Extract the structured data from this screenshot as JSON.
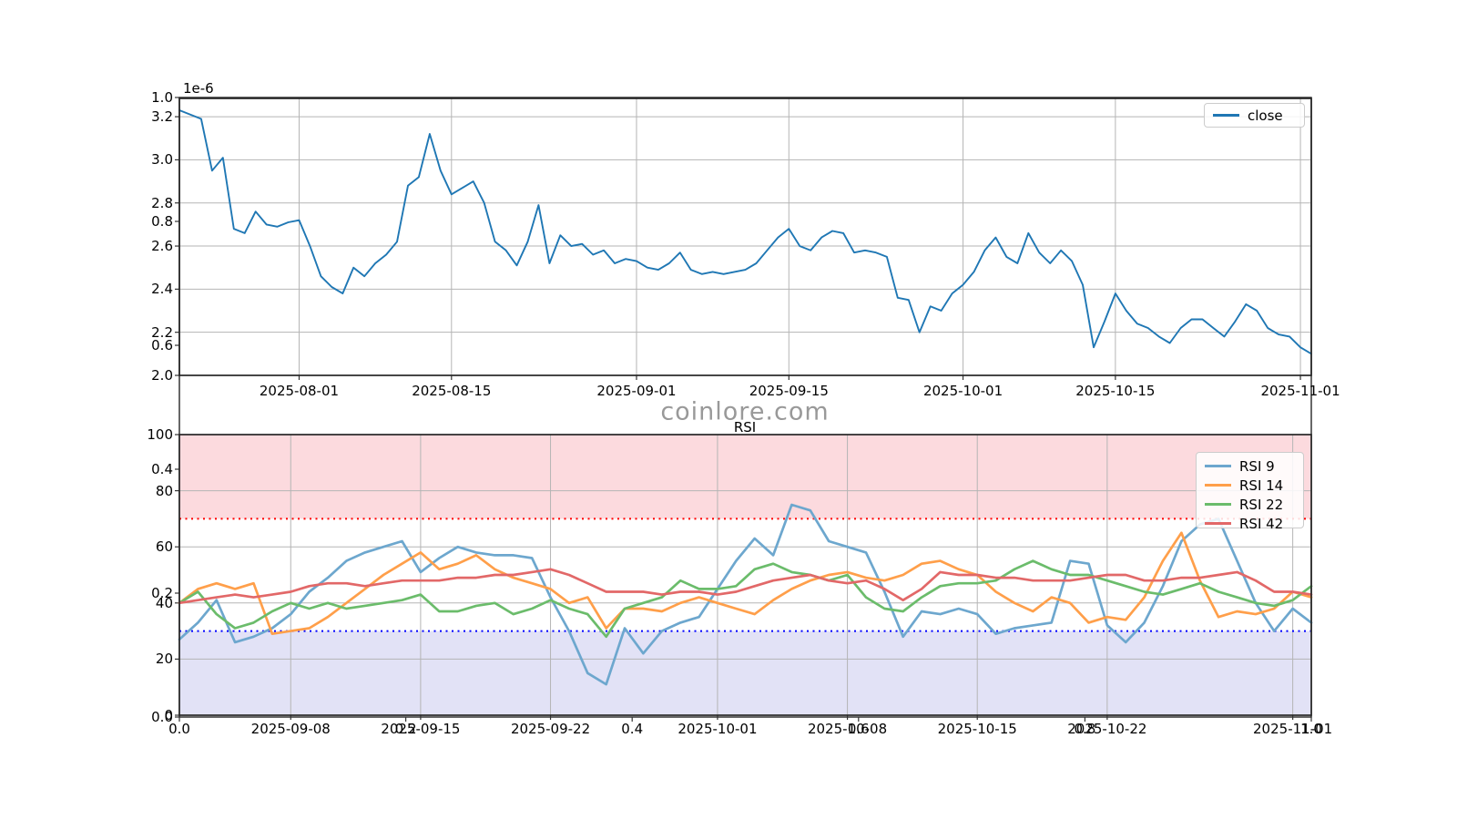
{
  "watermark": {
    "text": "coinlore.com",
    "color": "#999999"
  },
  "hidden_axis": {
    "y_tick_labels": [
      "1.0",
      "0.8",
      "0.6",
      "0.4",
      "0.2",
      "0.0"
    ],
    "x_tick_labels": [
      "0.0",
      "0.2",
      "0.4",
      "0.6",
      "0.8",
      "1.0"
    ]
  },
  "top_chart": {
    "offset_label": "1e-6",
    "y_tick_labels": [
      "3.2",
      "3.0",
      "2.8",
      "2.6",
      "2.4",
      "2.2",
      "2.0"
    ],
    "x_tick_labels": [
      "2025-08-01",
      "2025-08-15",
      "2025-09-01",
      "2025-09-15",
      "2025-10-01",
      "2025-10-15",
      "2025-11-01"
    ]
  },
  "rsi_chart": {
    "y_tick_labels": [
      "100",
      "80",
      "60",
      "40",
      "20",
      "0"
    ],
    "x_tick_labels": [
      "2025-09-08",
      "2025-09-15",
      "2025-09-22",
      "2025-10-01",
      "2025-10-08",
      "2025-10-15",
      "2025-10-22",
      "2025-11-01"
    ],
    "overbought_level": 70,
    "oversold_level": 30,
    "overbought_band_color": "#fcdade",
    "oversold_band_color": "#e2e2f6",
    "overbought_line_color": "#ff0000",
    "oversold_line_color": "#0000ff"
  },
  "chart_data": [
    {
      "type": "line",
      "title": "",
      "unit_multiplier": "1e-6",
      "ylim": [
        2.0,
        3.285
      ],
      "grid": true,
      "legend_position": "upper right",
      "x_tick_labels": [
        "2025-08-01",
        "2025-08-15",
        "2025-09-01",
        "2025-09-15",
        "2025-10-01",
        "2025-10-15",
        "2025-11-01"
      ],
      "y_tick_labels": [
        "3.2",
        "3.0",
        "2.8",
        "2.6",
        "2.4",
        "2.2",
        "2.0"
      ],
      "series": [
        {
          "name": "close",
          "color": "#1f77b4",
          "values": [
            3.23,
            3.21,
            3.19,
            2.95,
            3.01,
            2.68,
            2.66,
            2.76,
            2.7,
            2.69,
            2.71,
            2.72,
            2.6,
            2.46,
            2.41,
            2.38,
            2.5,
            2.46,
            2.52,
            2.56,
            2.62,
            2.88,
            2.92,
            3.12,
            2.95,
            2.84,
            2.87,
            2.9,
            2.8,
            2.62,
            2.58,
            2.51,
            2.62,
            2.79,
            2.52,
            2.65,
            2.6,
            2.61,
            2.56,
            2.58,
            2.52,
            2.54,
            2.53,
            2.5,
            2.49,
            2.52,
            2.57,
            2.49,
            2.47,
            2.48,
            2.47,
            2.48,
            2.49,
            2.52,
            2.58,
            2.64,
            2.68,
            2.6,
            2.58,
            2.64,
            2.67,
            2.66,
            2.57,
            2.58,
            2.57,
            2.55,
            2.36,
            2.35,
            2.2,
            2.32,
            2.3,
            2.38,
            2.42,
            2.48,
            2.58,
            2.64,
            2.55,
            2.52,
            2.66,
            2.57,
            2.52,
            2.58,
            2.53,
            2.42,
            2.13,
            2.25,
            2.38,
            2.3,
            2.24,
            2.22,
            2.18,
            2.15,
            2.22,
            2.26,
            2.26,
            2.22,
            2.18,
            2.25,
            2.33,
            2.3,
            2.22,
            2.19,
            2.18,
            2.13,
            2.1
          ]
        }
      ]
    },
    {
      "type": "line",
      "title": "RSI",
      "ylim": [
        0,
        100
      ],
      "grid": true,
      "legend_position": "upper right",
      "x_tick_labels": [
        "2025-09-08",
        "2025-09-15",
        "2025-09-22",
        "2025-10-01",
        "2025-10-08",
        "2025-10-15",
        "2025-10-22",
        "2025-11-01"
      ],
      "y_tick_labels": [
        "100",
        "80",
        "60",
        "40",
        "20",
        "0"
      ],
      "bands": [
        {
          "name": "overbought",
          "from": 70,
          "to": 100,
          "color": "#fcdade",
          "line_color": "#ff0000"
        },
        {
          "name": "oversold",
          "from": 0,
          "to": 30,
          "color": "#e2e2f6",
          "line_color": "#0000ff"
        }
      ],
      "series": [
        {
          "name": "RSI 9",
          "color": "#6da7ce",
          "values": [
            27,
            33,
            41,
            26,
            28,
            31,
            36,
            44,
            49,
            55,
            58,
            60,
            62,
            51,
            56,
            60,
            58,
            57,
            57,
            56,
            42,
            30,
            15,
            11,
            31,
            22,
            30,
            33,
            35,
            45,
            55,
            63,
            57,
            75,
            73,
            62,
            60,
            58,
            44,
            28,
            37,
            36,
            38,
            36,
            29,
            31,
            32,
            33,
            55,
            54,
            32,
            26,
            33,
            46,
            62,
            68,
            70,
            55,
            40,
            30,
            38,
            33
          ]
        },
        {
          "name": "RSI 14",
          "color": "#ff9f4a",
          "values": [
            40,
            45,
            47,
            45,
            47,
            29,
            30,
            31,
            35,
            40,
            45,
            50,
            54,
            58,
            52,
            54,
            57,
            52,
            49,
            47,
            45,
            40,
            42,
            31,
            38,
            38,
            37,
            40,
            42,
            40,
            38,
            36,
            41,
            45,
            48,
            50,
            51,
            49,
            48,
            50,
            54,
            55,
            52,
            50,
            44,
            40,
            37,
            42,
            40,
            33,
            35,
            34,
            42,
            55,
            65,
            48,
            35,
            37,
            36,
            38,
            44,
            42
          ]
        },
        {
          "name": "RSI 22",
          "color": "#6bbc6b",
          "values": [
            40,
            44,
            36,
            31,
            33,
            37,
            40,
            38,
            40,
            38,
            39,
            40,
            41,
            43,
            37,
            37,
            39,
            40,
            36,
            38,
            41,
            38,
            36,
            28,
            38,
            40,
            42,
            48,
            45,
            45,
            46,
            52,
            54,
            51,
            50,
            48,
            50,
            42,
            38,
            37,
            42,
            46,
            47,
            47,
            48,
            52,
            55,
            52,
            50,
            50,
            48,
            46,
            44,
            43,
            45,
            47,
            44,
            42,
            40,
            39,
            41,
            46
          ]
        },
        {
          "name": "RSI 42",
          "color": "#e26868",
          "values": [
            40,
            41,
            42,
            43,
            42,
            43,
            44,
            46,
            47,
            47,
            46,
            47,
            48,
            48,
            48,
            49,
            49,
            50,
            50,
            51,
            52,
            50,
            47,
            44,
            44,
            44,
            43,
            44,
            44,
            43,
            44,
            46,
            48,
            49,
            50,
            48,
            47,
            48,
            45,
            41,
            45,
            51,
            50,
            50,
            49,
            49,
            48,
            48,
            48,
            49,
            50,
            50,
            48,
            48,
            49,
            49,
            50,
            51,
            48,
            44,
            44,
            43
          ]
        }
      ]
    }
  ]
}
